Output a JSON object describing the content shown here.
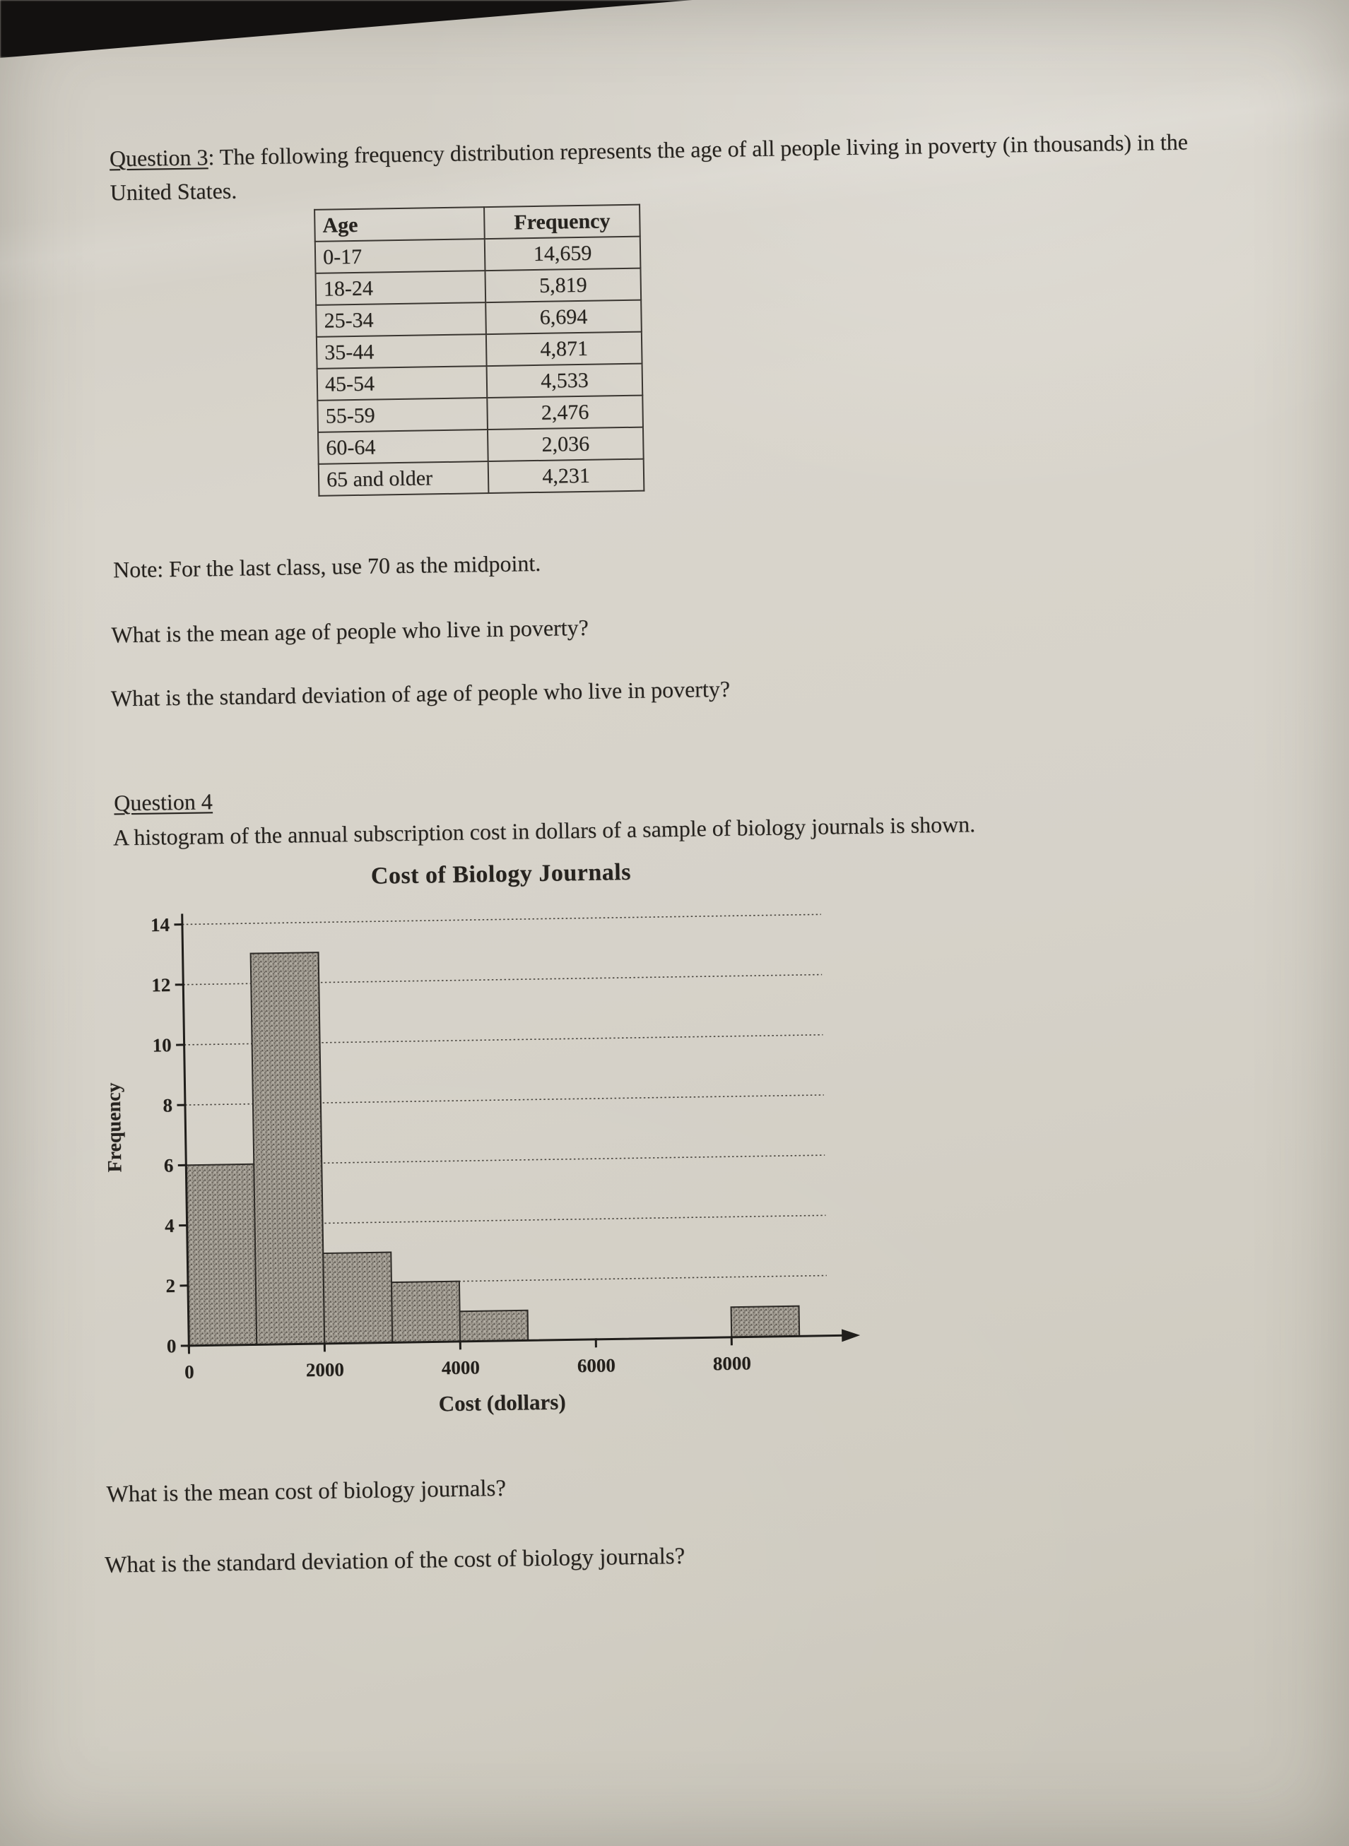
{
  "q3": {
    "heading": "Question 3",
    "body": ": The following frequency distribution represents the age of all people living in poverty (in thousands) in the United States.",
    "note": "Note: For the last class, use 70 as the midpoint.",
    "question_mean": "What is the mean age of people who live in poverty?",
    "question_sd": "What is the standard deviation of age of people who live in poverty?"
  },
  "table": {
    "headers": [
      "Age",
      "Frequency"
    ],
    "rows": [
      [
        "0-17",
        "14,659"
      ],
      [
        "18-24",
        "5,819"
      ],
      [
        "25-34",
        "6,694"
      ],
      [
        "35-44",
        "4,871"
      ],
      [
        "45-54",
        "4,533"
      ],
      [
        "55-59",
        "2,476"
      ],
      [
        "60-64",
        "2,036"
      ],
      [
        "65 and older",
        "4,231"
      ]
    ]
  },
  "q4": {
    "heading": "Question 4",
    "intro": "A histogram of the annual subscription cost in dollars of a sample of biology journals is shown.",
    "question_mean": "What is the mean cost of biology journals?",
    "question_sd": "What is the standard deviation of the cost of biology journals?"
  },
  "chart_data": {
    "type": "bar",
    "title": "Cost of Biology Journals",
    "xlabel": "Cost (dollars)",
    "ylabel": "Frequency",
    "xlim": [
      0,
      9800
    ],
    "ylim": [
      0,
      14
    ],
    "x_ticks": [
      0,
      2000,
      4000,
      6000,
      8000
    ],
    "y_ticks": [
      0,
      2,
      4,
      6,
      8,
      10,
      12,
      14
    ],
    "gridlines_y": [
      2,
      4,
      6,
      8,
      10,
      12,
      14
    ],
    "grid_style": "dashed",
    "legend": "none",
    "bins": [
      {
        "start": 0,
        "end": 1000,
        "frequency": 6
      },
      {
        "start": 1000,
        "end": 2000,
        "frequency": 13
      },
      {
        "start": 2000,
        "end": 3000,
        "frequency": 3
      },
      {
        "start": 3000,
        "end": 4000,
        "frequency": 2
      },
      {
        "start": 4000,
        "end": 5000,
        "frequency": 1
      },
      {
        "start": 8000,
        "end": 9000,
        "frequency": 1
      }
    ]
  },
  "colors": {
    "paper": "#d6d2c9",
    "ink": "#26231f",
    "bar_fill": "#a39e94"
  }
}
